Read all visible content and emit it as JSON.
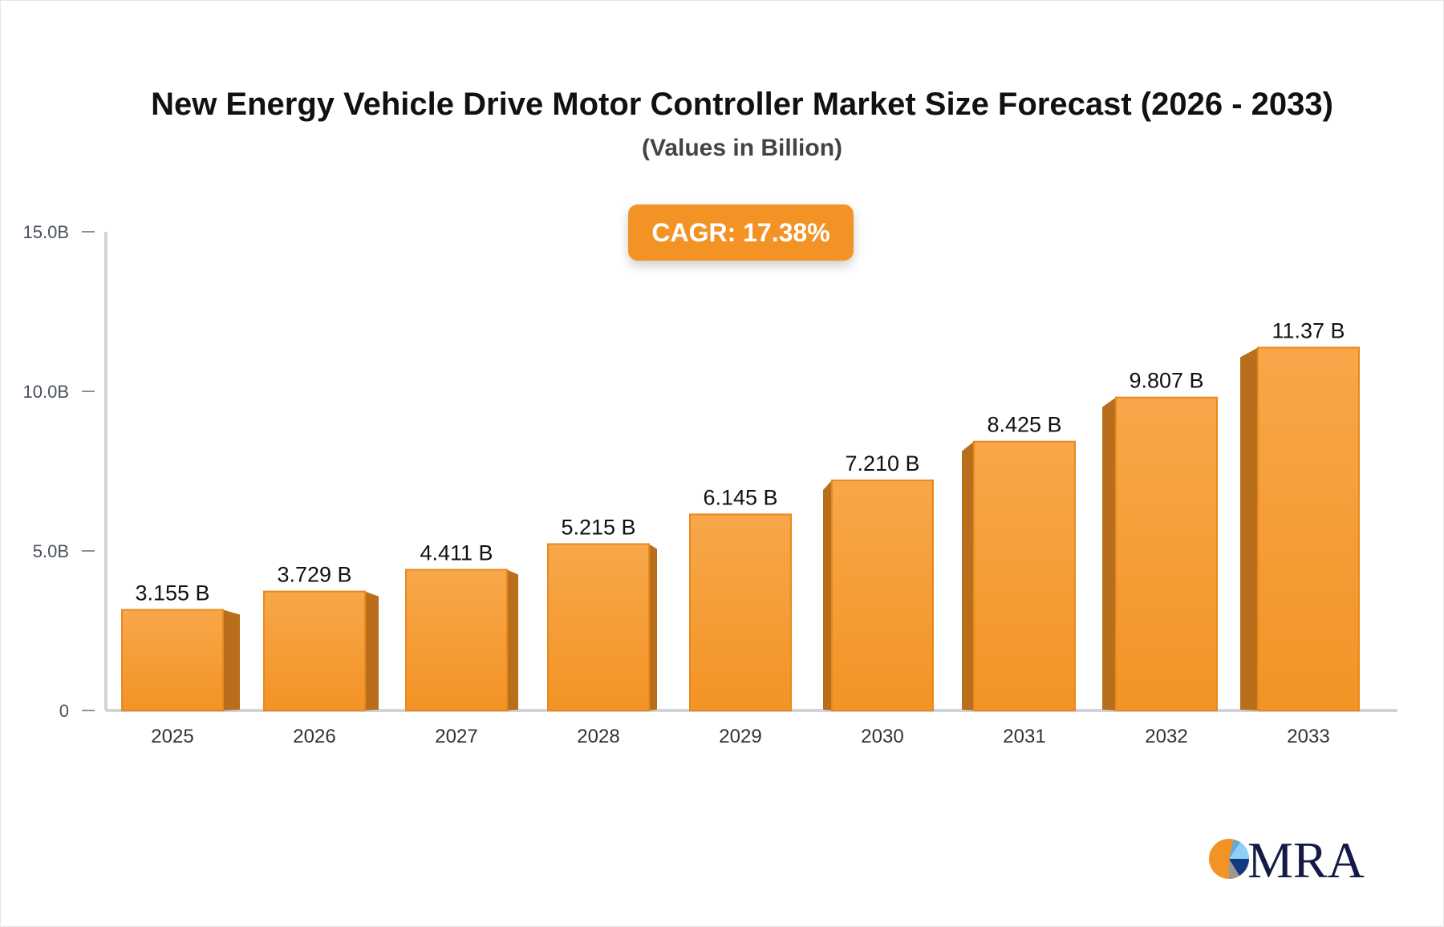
{
  "chart_data": {
    "type": "bar",
    "title": "New Energy Vehicle Drive Motor Controller Market Size Forecast (2026 - 2033)",
    "subtitle": "(Values in Billion)",
    "categories": [
      "2025",
      "2026",
      "2027",
      "2028",
      "2029",
      "2030",
      "2031",
      "2032",
      "2033"
    ],
    "values": [
      3.155,
      3.729,
      4.411,
      5.215,
      6.145,
      7.21,
      8.425,
      9.807,
      11.37
    ],
    "data_labels": [
      "3.155 B",
      "3.729 B",
      "4.411 B",
      "5.215 B",
      "6.145 B",
      "7.210 B",
      "8.425 B",
      "9.807 B",
      "11.37 B"
    ],
    "yticks": [
      0,
      5,
      10,
      15
    ],
    "ytick_labels": [
      "0",
      "5.0B",
      "10.0B",
      "15.0B"
    ],
    "ylim": [
      0,
      15
    ],
    "xlabel": "",
    "ylabel": "",
    "grid": false,
    "bar_color": "#f39325",
    "bar_side_color": "#b86e1a",
    "annotation": "CAGR: 17.38%"
  },
  "logo": {
    "text": "MRA"
  }
}
